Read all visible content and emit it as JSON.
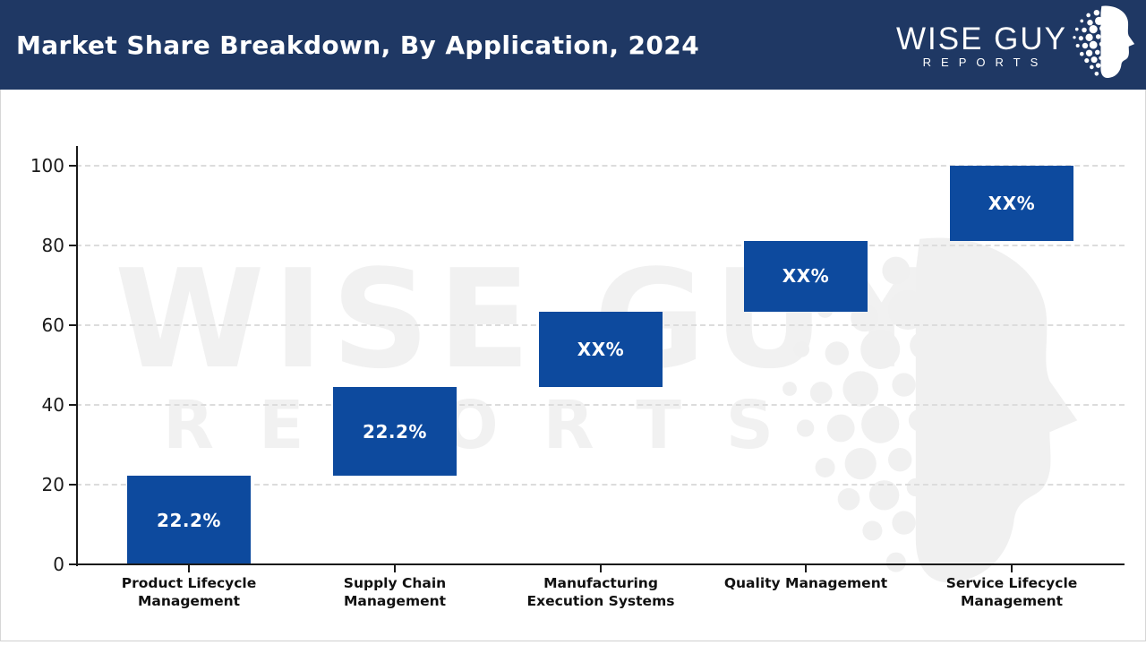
{
  "header": {
    "title": "Market Share Breakdown, By Application, 2024",
    "logo": {
      "line1": "WISE GUY",
      "line2": "REPORTS",
      "head_icon": "wiseguy-head-icon"
    }
  },
  "watermark": {
    "line1": "WISE GUY",
    "line2": "REPORTS",
    "head_icon": "wiseguy-head-watermark-icon"
  },
  "colors": {
    "header_bg": "#1f3864",
    "bar": "#0d4a9e",
    "bar_label": "#ffffff",
    "gridline": "#dcdcdc",
    "axis": "#1a1a1a",
    "watermark": "#f1f1f1"
  },
  "chart_data": {
    "type": "bar",
    "subtype": "waterfall",
    "title": "Market Share Breakdown, By Application, 2024",
    "xlabel": "",
    "ylabel": "",
    "ylim": [
      0,
      100
    ],
    "yticks": [
      0,
      20,
      40,
      60,
      80,
      100
    ],
    "grid": "horizontal-dashed",
    "legend": "none",
    "categories": [
      "Product Lifecycle\nManagement",
      "Supply Chain\nManagement",
      "Manufacturing\nExecution Systems",
      "Quality Management",
      "Service Lifecycle\nManagement"
    ],
    "segments": [
      {
        "category": "Product Lifecycle Management",
        "start": 0,
        "end": 22.2,
        "label": "22.2%"
      },
      {
        "category": "Supply Chain Management",
        "start": 22.2,
        "end": 44.4,
        "label": "22.2%"
      },
      {
        "category": "Manufacturing Execution Systems",
        "start": 44.4,
        "end": 63.4,
        "label": "XX%"
      },
      {
        "category": "Quality Management",
        "start": 63.4,
        "end": 81.2,
        "label": "XX%"
      },
      {
        "category": "Service Lifecycle Management",
        "start": 81.2,
        "end": 100,
        "label": "XX%"
      }
    ]
  }
}
